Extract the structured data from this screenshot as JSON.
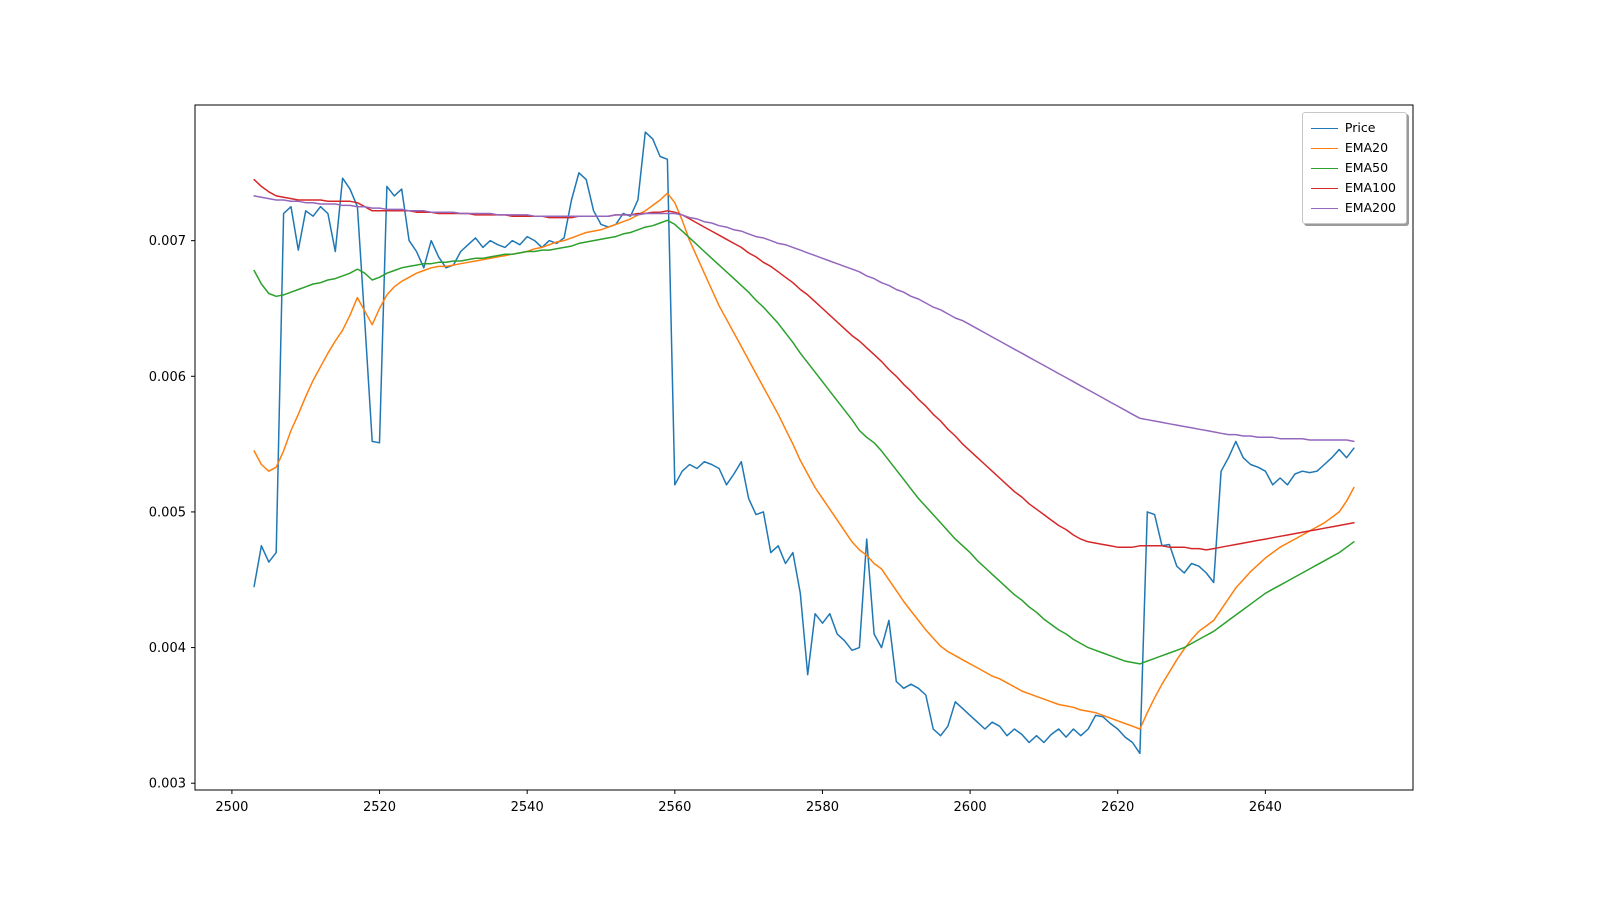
{
  "figure": {
    "background": "#ffffff"
  },
  "chart_data": {
    "type": "line",
    "title": "",
    "xlabel": "",
    "ylabel": "",
    "grid": false,
    "legend_position": "upper right",
    "x_range": [
      2495,
      2660
    ],
    "y_range": [
      0.00295,
      0.008
    ],
    "x_ticks": [
      2500,
      2520,
      2540,
      2560,
      2580,
      2600,
      2620,
      2640
    ],
    "x_tick_labels": [
      "2500",
      "2520",
      "2540",
      "2560",
      "2580",
      "2600",
      "2620",
      "2640"
    ],
    "y_ticks": [
      0.003,
      0.004,
      0.005,
      0.006,
      0.007
    ],
    "y_tick_labels": [
      "0.003",
      "0.004",
      "0.005",
      "0.006",
      "0.007"
    ],
    "x_start": 2503,
    "x_step": 1,
    "series": [
      {
        "name": "Price",
        "color": "#1f77b4",
        "values": [
          0.00445,
          0.00475,
          0.00463,
          0.0047,
          0.0072,
          0.00725,
          0.00693,
          0.00722,
          0.00718,
          0.00725,
          0.0072,
          0.00692,
          0.00746,
          0.00738,
          0.00725,
          0.0064,
          0.00552,
          0.00551,
          0.0074,
          0.00733,
          0.00738,
          0.007,
          0.00692,
          0.0068,
          0.007,
          0.00688,
          0.0068,
          0.00682,
          0.00692,
          0.00697,
          0.00702,
          0.00695,
          0.007,
          0.00697,
          0.00695,
          0.007,
          0.00697,
          0.00703,
          0.007,
          0.00695,
          0.007,
          0.00698,
          0.00702,
          0.0073,
          0.0075,
          0.00745,
          0.00722,
          0.00712,
          0.0071,
          0.00712,
          0.0072,
          0.00718,
          0.0073,
          0.0078,
          0.00775,
          0.00762,
          0.0076,
          0.0052,
          0.0053,
          0.00535,
          0.00532,
          0.00537,
          0.00535,
          0.00532,
          0.0052,
          0.00528,
          0.00537,
          0.0051,
          0.00498,
          0.005,
          0.0047,
          0.00475,
          0.00462,
          0.0047,
          0.0044,
          0.0038,
          0.00425,
          0.00418,
          0.00425,
          0.0041,
          0.00405,
          0.00398,
          0.004,
          0.0048,
          0.0041,
          0.004,
          0.0042,
          0.00375,
          0.0037,
          0.00373,
          0.0037,
          0.00365,
          0.0034,
          0.00335,
          0.00342,
          0.0036,
          0.00355,
          0.0035,
          0.00345,
          0.0034,
          0.00345,
          0.00342,
          0.00335,
          0.0034,
          0.00336,
          0.0033,
          0.00335,
          0.0033,
          0.00336,
          0.0034,
          0.00334,
          0.0034,
          0.00335,
          0.0034,
          0.0035,
          0.00349,
          0.00344,
          0.0034,
          0.00334,
          0.0033,
          0.00322,
          0.005,
          0.00498,
          0.00475,
          0.00476,
          0.0046,
          0.00455,
          0.00462,
          0.0046,
          0.00455,
          0.00448,
          0.0053,
          0.0054,
          0.00552,
          0.0054,
          0.00535,
          0.00533,
          0.0053,
          0.0052,
          0.00525,
          0.0052,
          0.00528,
          0.0053,
          0.00529,
          0.0053,
          0.00535,
          0.0054,
          0.00546,
          0.0054,
          0.00547
        ]
      },
      {
        "name": "EMA20",
        "color": "#ff7f0e",
        "values": [
          0.00545,
          0.00535,
          0.0053,
          0.00533,
          0.00545,
          0.0056,
          0.00572,
          0.00585,
          0.00597,
          0.00607,
          0.00617,
          0.00626,
          0.00634,
          0.00645,
          0.00658,
          0.00648,
          0.00638,
          0.0065,
          0.0066,
          0.00666,
          0.0067,
          0.00673,
          0.00676,
          0.00678,
          0.0068,
          0.00681,
          0.00681,
          0.00682,
          0.00683,
          0.00684,
          0.00685,
          0.00686,
          0.00687,
          0.00688,
          0.00689,
          0.0069,
          0.00691,
          0.00692,
          0.00694,
          0.00695,
          0.00697,
          0.00699,
          0.007,
          0.00702,
          0.00704,
          0.00706,
          0.00707,
          0.00708,
          0.0071,
          0.00712,
          0.00714,
          0.00716,
          0.00719,
          0.00722,
          0.00726,
          0.0073,
          0.00735,
          0.00728,
          0.00715,
          0.007,
          0.00688,
          0.00676,
          0.00664,
          0.00652,
          0.00642,
          0.00632,
          0.00622,
          0.00612,
          0.00602,
          0.00592,
          0.00582,
          0.00572,
          0.00561,
          0.0055,
          0.00538,
          0.00528,
          0.00518,
          0.0051,
          0.00502,
          0.00494,
          0.00486,
          0.00478,
          0.00472,
          0.00468,
          0.00462,
          0.00458,
          0.0045,
          0.00442,
          0.00434,
          0.00427,
          0.0042,
          0.00413,
          0.00407,
          0.00401,
          0.00397,
          0.00394,
          0.00391,
          0.00388,
          0.00385,
          0.00382,
          0.00379,
          0.00377,
          0.00374,
          0.00371,
          0.00368,
          0.00366,
          0.00364,
          0.00362,
          0.0036,
          0.00358,
          0.00357,
          0.00356,
          0.00354,
          0.00353,
          0.00352,
          0.0035,
          0.00348,
          0.00346,
          0.00344,
          0.00342,
          0.0034,
          0.00352,
          0.00363,
          0.00373,
          0.00382,
          0.00391,
          0.00399,
          0.00406,
          0.00412,
          0.00416,
          0.0042,
          0.00428,
          0.00436,
          0.00444,
          0.0045,
          0.00456,
          0.00461,
          0.00466,
          0.0047,
          0.00474,
          0.00477,
          0.0048,
          0.00483,
          0.00486,
          0.00489,
          0.00492,
          0.00496,
          0.005,
          0.00508,
          0.00518
        ]
      },
      {
        "name": "EMA50",
        "color": "#2ca02c",
        "values": [
          0.00678,
          0.00668,
          0.00661,
          0.00659,
          0.0066,
          0.00662,
          0.00664,
          0.00666,
          0.00668,
          0.00669,
          0.00671,
          0.00672,
          0.00674,
          0.00676,
          0.00679,
          0.00676,
          0.00671,
          0.00673,
          0.00676,
          0.00678,
          0.0068,
          0.00681,
          0.00682,
          0.00683,
          0.00683,
          0.00684,
          0.00684,
          0.00685,
          0.00685,
          0.00686,
          0.00687,
          0.00687,
          0.00688,
          0.00689,
          0.0069,
          0.0069,
          0.00691,
          0.00692,
          0.00692,
          0.00693,
          0.00693,
          0.00694,
          0.00695,
          0.00696,
          0.00698,
          0.00699,
          0.007,
          0.00701,
          0.00702,
          0.00703,
          0.00705,
          0.00706,
          0.00708,
          0.0071,
          0.00711,
          0.00713,
          0.00715,
          0.00712,
          0.00707,
          0.00702,
          0.00697,
          0.00692,
          0.00687,
          0.00682,
          0.00677,
          0.00672,
          0.00667,
          0.00662,
          0.00656,
          0.00651,
          0.00645,
          0.00639,
          0.00632,
          0.00625,
          0.00617,
          0.0061,
          0.00603,
          0.00596,
          0.00589,
          0.00582,
          0.00575,
          0.00568,
          0.0056,
          0.00555,
          0.00551,
          0.00545,
          0.00538,
          0.00531,
          0.00524,
          0.00517,
          0.0051,
          0.00504,
          0.00498,
          0.00492,
          0.00486,
          0.0048,
          0.00475,
          0.0047,
          0.00464,
          0.00459,
          0.00454,
          0.00449,
          0.00444,
          0.00439,
          0.00435,
          0.0043,
          0.00426,
          0.00421,
          0.00417,
          0.00413,
          0.0041,
          0.00406,
          0.00403,
          0.004,
          0.00398,
          0.00396,
          0.00394,
          0.00392,
          0.0039,
          0.00389,
          0.00388,
          0.0039,
          0.00392,
          0.00394,
          0.00396,
          0.00398,
          0.004,
          0.00403,
          0.00406,
          0.00409,
          0.00412,
          0.00416,
          0.0042,
          0.00424,
          0.00428,
          0.00432,
          0.00436,
          0.0044,
          0.00443,
          0.00446,
          0.00449,
          0.00452,
          0.00455,
          0.00458,
          0.00461,
          0.00464,
          0.00467,
          0.0047,
          0.00474,
          0.00478
        ]
      },
      {
        "name": "EMA100",
        "color": "#d62728",
        "values": [
          0.00745,
          0.0074,
          0.00736,
          0.00733,
          0.00732,
          0.00731,
          0.0073,
          0.0073,
          0.0073,
          0.0073,
          0.00729,
          0.00729,
          0.00729,
          0.00729,
          0.00728,
          0.00725,
          0.00722,
          0.00722,
          0.00722,
          0.00722,
          0.00722,
          0.00722,
          0.00721,
          0.00721,
          0.00721,
          0.0072,
          0.0072,
          0.0072,
          0.0072,
          0.0072,
          0.00719,
          0.00719,
          0.00719,
          0.00719,
          0.00719,
          0.00718,
          0.00718,
          0.00718,
          0.00718,
          0.00718,
          0.00717,
          0.00717,
          0.00717,
          0.00717,
          0.00718,
          0.00718,
          0.00718,
          0.00718,
          0.00718,
          0.00719,
          0.00719,
          0.00719,
          0.0072,
          0.0072,
          0.00721,
          0.00721,
          0.00722,
          0.00721,
          0.00719,
          0.00716,
          0.00713,
          0.0071,
          0.00707,
          0.00704,
          0.00701,
          0.00698,
          0.00695,
          0.00691,
          0.00688,
          0.00684,
          0.00681,
          0.00677,
          0.00673,
          0.00669,
          0.00664,
          0.0066,
          0.00655,
          0.0065,
          0.00645,
          0.0064,
          0.00635,
          0.0063,
          0.00626,
          0.00621,
          0.00616,
          0.00611,
          0.00605,
          0.006,
          0.00594,
          0.00589,
          0.00583,
          0.00578,
          0.00572,
          0.00567,
          0.00561,
          0.00556,
          0.0055,
          0.00545,
          0.0054,
          0.00535,
          0.0053,
          0.00525,
          0.0052,
          0.00515,
          0.00511,
          0.00506,
          0.00502,
          0.00498,
          0.00494,
          0.0049,
          0.00487,
          0.00483,
          0.0048,
          0.00478,
          0.00477,
          0.00476,
          0.00475,
          0.00474,
          0.00474,
          0.00474,
          0.00475,
          0.00475,
          0.00475,
          0.00475,
          0.00474,
          0.00474,
          0.00474,
          0.00473,
          0.00473,
          0.00472,
          0.00473,
          0.00474,
          0.00475,
          0.00476,
          0.00477,
          0.00478,
          0.00479,
          0.0048,
          0.00481,
          0.00482,
          0.00483,
          0.00484,
          0.00485,
          0.00486,
          0.00487,
          0.00488,
          0.00489,
          0.0049,
          0.00491,
          0.00492
        ]
      },
      {
        "name": "EMA200",
        "color": "#9467bd",
        "values": [
          0.00733,
          0.00732,
          0.00731,
          0.0073,
          0.0073,
          0.00729,
          0.00729,
          0.00728,
          0.00728,
          0.00727,
          0.00727,
          0.00727,
          0.00726,
          0.00726,
          0.00725,
          0.00725,
          0.00724,
          0.00724,
          0.00723,
          0.00723,
          0.00723,
          0.00722,
          0.00722,
          0.00722,
          0.00721,
          0.00721,
          0.00721,
          0.00721,
          0.0072,
          0.0072,
          0.0072,
          0.0072,
          0.0072,
          0.00719,
          0.00719,
          0.00719,
          0.00719,
          0.00719,
          0.00718,
          0.00718,
          0.00718,
          0.00718,
          0.00718,
          0.00718,
          0.00718,
          0.00718,
          0.00718,
          0.00718,
          0.00718,
          0.00719,
          0.00719,
          0.00719,
          0.00719,
          0.0072,
          0.0072,
          0.0072,
          0.0072,
          0.0072,
          0.00719,
          0.00717,
          0.00716,
          0.00714,
          0.00713,
          0.00711,
          0.0071,
          0.00708,
          0.00707,
          0.00705,
          0.00703,
          0.00702,
          0.007,
          0.00698,
          0.00697,
          0.00695,
          0.00693,
          0.00691,
          0.00689,
          0.00687,
          0.00685,
          0.00683,
          0.00681,
          0.00679,
          0.00677,
          0.00674,
          0.00672,
          0.00669,
          0.00667,
          0.00664,
          0.00662,
          0.00659,
          0.00657,
          0.00654,
          0.00651,
          0.00649,
          0.00646,
          0.00643,
          0.00641,
          0.00638,
          0.00635,
          0.00632,
          0.00629,
          0.00626,
          0.00623,
          0.0062,
          0.00617,
          0.00614,
          0.00611,
          0.00608,
          0.00605,
          0.00602,
          0.00599,
          0.00596,
          0.00593,
          0.0059,
          0.00587,
          0.00584,
          0.00581,
          0.00578,
          0.00575,
          0.00572,
          0.00569,
          0.00568,
          0.00567,
          0.00566,
          0.00565,
          0.00564,
          0.00563,
          0.00562,
          0.00561,
          0.0056,
          0.00559,
          0.00558,
          0.00557,
          0.00557,
          0.00556,
          0.00556,
          0.00555,
          0.00555,
          0.00555,
          0.00554,
          0.00554,
          0.00554,
          0.00554,
          0.00553,
          0.00553,
          0.00553,
          0.00553,
          0.00553,
          0.00553,
          0.00552
        ]
      }
    ]
  }
}
